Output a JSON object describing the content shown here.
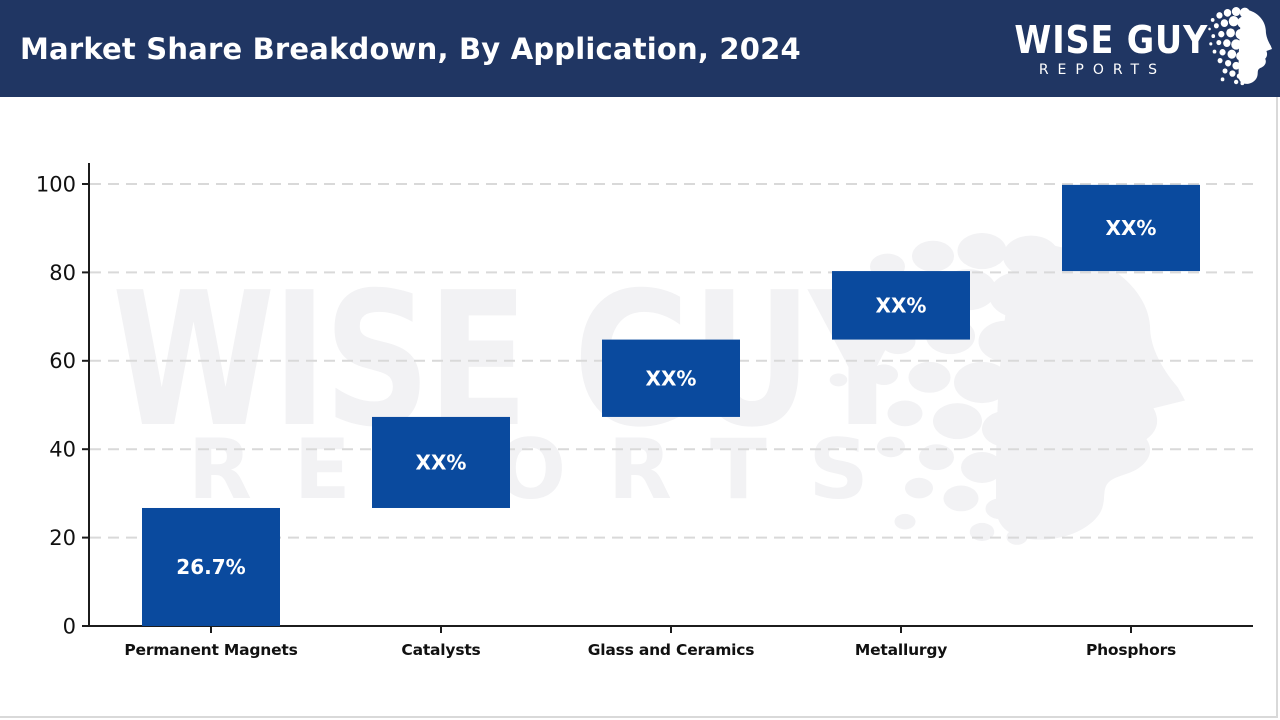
{
  "header": {
    "title": "Market Share Breakdown, By Application, 2024",
    "logo": {
      "line1": "WISE GUY",
      "line2": "REPORTS"
    }
  },
  "watermark": {
    "line1": "WISE GUY",
    "line2": "REPORTS"
  },
  "chart_data": {
    "type": "bar",
    "subtype": "waterfall-breakdown",
    "title": "Market Share Breakdown, By Application, 2024",
    "categories": [
      "Permanent Magnets",
      "Catalysts",
      "Glass and Ceramics",
      "Metallurgy",
      "Phosphors"
    ],
    "series": [
      {
        "name": "Market share (%)",
        "segments": [
          {
            "category": "Permanent Magnets",
            "start": 0,
            "end": 26.7,
            "label": "26.7%"
          },
          {
            "category": "Catalysts",
            "start": 26.7,
            "end": 47.3,
            "label": "XX%"
          },
          {
            "category": "Glass and Ceramics",
            "start": 47.3,
            "end": 64.8,
            "label": "XX%"
          },
          {
            "category": "Metallurgy",
            "start": 64.8,
            "end": 80.3,
            "label": "XX%"
          },
          {
            "category": "Phosphors",
            "start": 80.3,
            "end": 99.8,
            "label": "XX%"
          }
        ]
      }
    ],
    "xlabel": "",
    "ylabel": "",
    "ylim": [
      0,
      100
    ],
    "yticks": [
      0,
      20,
      40,
      60,
      80,
      100
    ],
    "grid": "horizontal-dashed",
    "legend": "none",
    "bar_color": "#0a4a9e",
    "bar_label_color": "#ffffff"
  },
  "colors": {
    "header_bg": "#203663",
    "header_text": "#ffffff",
    "bar": "#0a4a9e",
    "axis": "#1c1c1c",
    "gridline": "#d9d9d9",
    "watermark": "#f2f2f4",
    "page_bg": "#ffffff",
    "border": "#d9d9d9",
    "tick_text": "#111111"
  }
}
